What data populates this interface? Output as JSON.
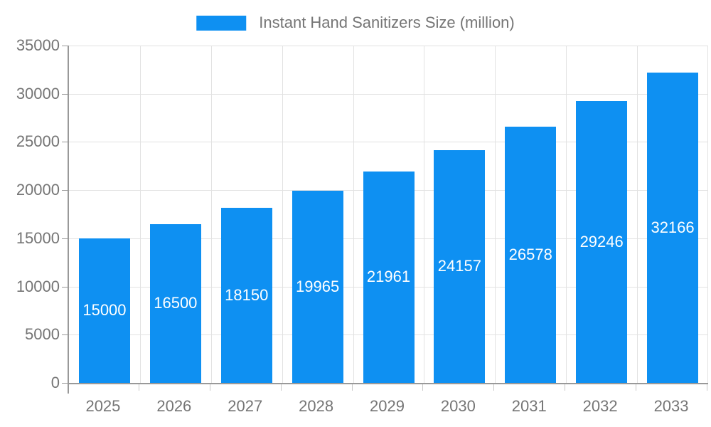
{
  "chart_data": {
    "type": "bar",
    "title": "",
    "legend_position": "top-center",
    "categories": [
      "2025",
      "2026",
      "2027",
      "2028",
      "2029",
      "2030",
      "2031",
      "2032",
      "2033"
    ],
    "series": [
      {
        "name": "Instant Hand Sanitizers Size (million)",
        "values": [
          15000,
          16500,
          18150,
          19965,
          21961,
          24157,
          26578,
          29246,
          32166
        ]
      }
    ],
    "value_labels_shown": true,
    "xlabel": "",
    "ylabel": "",
    "ylim": [
      0,
      35000
    ],
    "yticks": [
      0,
      5000,
      10000,
      15000,
      20000,
      25000,
      30000,
      35000
    ],
    "grid": true,
    "colors": {
      "bar": "#0e90f2",
      "value_label": "#ffffff",
      "axis_text": "#757575",
      "legend_text": "#757575",
      "gridline": "#e2e2e2",
      "axis_line": "#999999",
      "background": "#ffffff"
    }
  }
}
